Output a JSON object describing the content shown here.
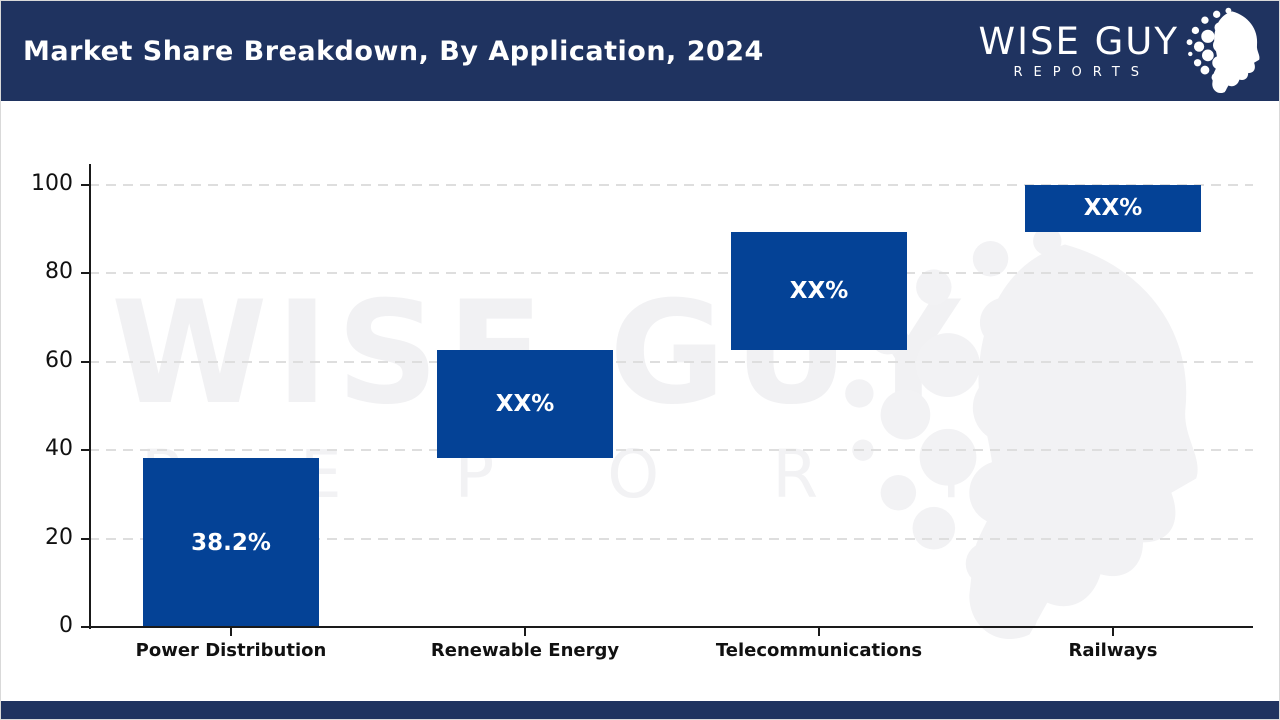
{
  "header": {
    "title": "Market Share Breakdown, By Application, 2024",
    "logo": {
      "line1": "WISE GUY",
      "line2": "REPORTS"
    }
  },
  "watermark": {
    "line1": "WISE GUY",
    "line2": "R E P O R T S"
  },
  "chart_data": {
    "type": "bar",
    "subtype": "waterfall",
    "title": "Market Share Breakdown, By Application, 2024",
    "categories": [
      "Power Distribution",
      "Renewable Energy",
      "Telecommunications",
      "Railways"
    ],
    "segments": [
      {
        "category": "Power Distribution",
        "start": 0,
        "end": 38.2,
        "label": "38.2%"
      },
      {
        "category": "Renewable Energy",
        "start": 38.2,
        "end": 62.6,
        "label": "XX%"
      },
      {
        "category": "Telecommunications",
        "start": 62.6,
        "end": 89.4,
        "label": "XX%"
      },
      {
        "category": "Railways",
        "start": 89.4,
        "end": 100,
        "label": "XX%"
      }
    ],
    "xlabel": "",
    "ylabel": "",
    "ylim": [
      0,
      100
    ],
    "yticks": [
      0,
      20,
      40,
      60,
      80,
      100
    ],
    "grid": true,
    "legend": false
  },
  "colors": {
    "header_bg": "#1f3360",
    "footer_bg": "#1f3360",
    "bar": "#044296",
    "bar_label": "#ffffff",
    "grid": "#dedede",
    "axis": "#1a1a1a",
    "watermark": "#f1f1f3"
  }
}
